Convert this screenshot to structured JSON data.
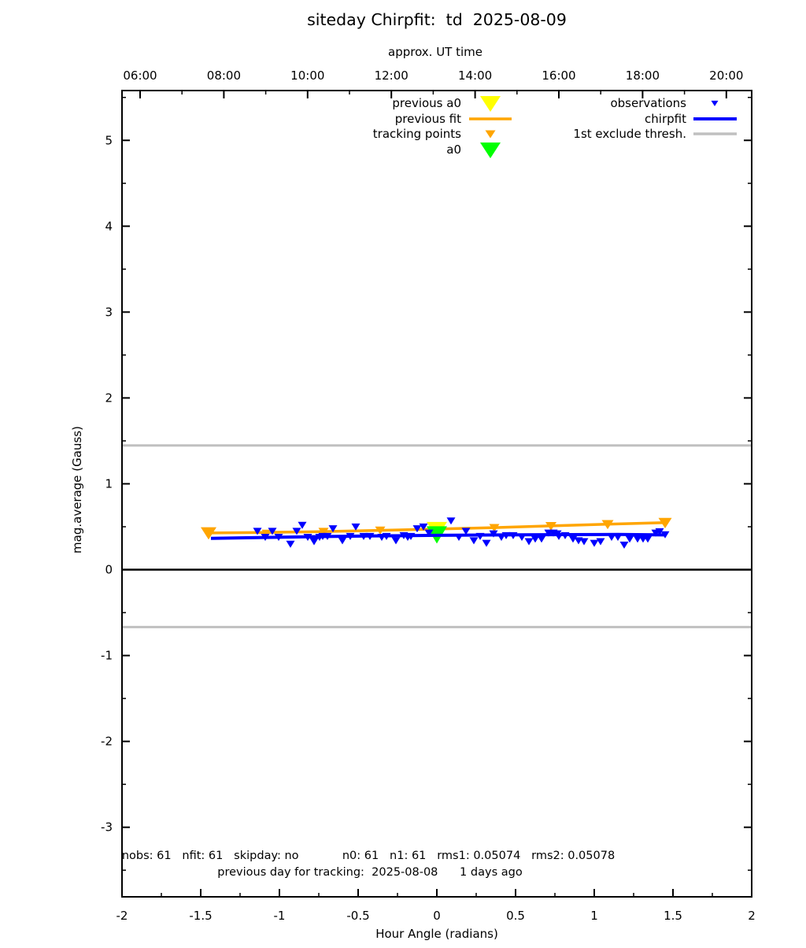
{
  "chart_data": {
    "type": "scatter",
    "title": "siteday Chirpfit:  td  2025-08-09",
    "x2label": "approx. UT time",
    "xlabel": "Hour Angle (radians)",
    "ylabel": "mag.average (Gauss)",
    "xlim": [
      -2,
      2
    ],
    "ylim": [
      -3.81,
      5.58
    ],
    "grid": false,
    "xticks": {
      "values": [
        -2,
        -1.5,
        -1,
        -0.5,
        0,
        0.5,
        1,
        1.5,
        2
      ],
      "labels": [
        "-2",
        "-1.5",
        "-1",
        "-0.5",
        "0",
        "0.5",
        "1",
        "1.5",
        "2"
      ],
      "minor_step": 0.25
    },
    "yticks": {
      "values": [
        5,
        4,
        3,
        2,
        1,
        0,
        -1,
        -2,
        -3
      ],
      "labels": [
        "5",
        "4",
        "3",
        "2",
        "1",
        "0",
        "-1",
        "-2",
        "-3"
      ],
      "minor_step": 0.5
    },
    "x2ticks": {
      "values": [
        -1.885,
        -1.353,
        -0.821,
        -0.289,
        0.243,
        0.775,
        1.307,
        1.839
      ],
      "labels": [
        "06:00",
        "08:00",
        "10:00",
        "12:00",
        "14:00",
        "16:00",
        "18:00",
        "20:00"
      ],
      "minor_step": 0.266
    },
    "colors": {
      "observations": "#0000ff",
      "chirpfit": "#0000ff",
      "previous_fit": "#ffa500",
      "tracking_points": "#ffa500",
      "previous_a0": "#ffff00",
      "a0": "#00ff00",
      "exclude_threshold": "#c0c0c0",
      "zero_line": "#000000",
      "axis": "#000000"
    },
    "legend": {
      "position": "top-inside",
      "left_column": [
        {
          "label": "previous a0",
          "marker": "triangle-large",
          "color": "#ffff00"
        },
        {
          "label": "previous fit",
          "marker": "line",
          "color": "#ffa500"
        },
        {
          "label": "tracking points",
          "marker": "triangle-small",
          "color": "#ffa500"
        },
        {
          "label": "a0",
          "marker": "triangle-large",
          "color": "#00ff00"
        }
      ],
      "right_column": [
        {
          "label": "observations",
          "marker": "triangle-tiny",
          "color": "#0000ff"
        },
        {
          "label": "chirpfit",
          "marker": "line",
          "color": "#0000ff"
        },
        {
          "label": "1st exclude thresh.",
          "marker": "line",
          "color": "#c0c0c0"
        }
      ]
    },
    "series": {
      "observations": {
        "points": [
          [
            -1.14,
            0.45
          ],
          [
            -1.09,
            0.38
          ],
          [
            -1.045,
            0.45
          ],
          [
            -1.005,
            0.38
          ],
          [
            -0.93,
            0.3
          ],
          [
            -0.89,
            0.45
          ],
          [
            -0.855,
            0.52
          ],
          [
            -0.82,
            0.38
          ],
          [
            -0.78,
            0.33
          ],
          [
            -0.745,
            0.38
          ],
          [
            -0.725,
            0.39
          ],
          [
            -0.695,
            0.39
          ],
          [
            -0.66,
            0.48
          ],
          [
            -0.6,
            0.34
          ],
          [
            -0.55,
            0.39
          ],
          [
            -0.515,
            0.5
          ],
          [
            -0.465,
            0.39
          ],
          [
            -0.425,
            0.39
          ],
          [
            -0.35,
            0.38
          ],
          [
            -0.32,
            0.39
          ],
          [
            -0.26,
            0.34
          ],
          [
            -0.21,
            0.4
          ],
          [
            -0.185,
            0.38
          ],
          [
            -0.165,
            0.39
          ],
          [
            -0.125,
            0.48
          ],
          [
            -0.085,
            0.5
          ],
          [
            -0.05,
            0.43
          ],
          [
            0.09,
            0.57
          ],
          [
            0.14,
            0.38
          ],
          [
            0.185,
            0.45
          ],
          [
            0.235,
            0.34
          ],
          [
            0.275,
            0.39
          ],
          [
            0.315,
            0.31
          ],
          [
            0.36,
            0.42
          ],
          [
            0.41,
            0.38
          ],
          [
            0.44,
            0.4
          ],
          [
            0.485,
            0.4
          ],
          [
            0.54,
            0.38
          ],
          [
            0.585,
            0.33
          ],
          [
            0.625,
            0.36
          ],
          [
            0.665,
            0.36
          ],
          [
            0.71,
            0.43
          ],
          [
            0.74,
            0.43
          ],
          [
            0.765,
            0.42
          ],
          [
            0.775,
            0.39
          ],
          [
            0.815,
            0.4
          ],
          [
            0.865,
            0.36
          ],
          [
            0.9,
            0.34
          ],
          [
            0.935,
            0.33
          ],
          [
            1.0,
            0.31
          ],
          [
            1.04,
            0.33
          ],
          [
            1.11,
            0.38
          ],
          [
            1.15,
            0.38
          ],
          [
            1.19,
            0.29
          ],
          [
            1.225,
            0.36
          ],
          [
            1.275,
            0.36
          ],
          [
            1.31,
            0.36
          ],
          [
            1.34,
            0.36
          ],
          [
            1.39,
            0.43
          ],
          [
            1.415,
            0.445
          ],
          [
            1.45,
            0.41
          ]
        ]
      },
      "chirpfit_line": {
        "points": [
          [
            -1.435,
            0.365
          ],
          [
            -1.1,
            0.375
          ],
          [
            -0.75,
            0.385
          ],
          [
            -0.4,
            0.393
          ],
          [
            0.0,
            0.4
          ],
          [
            0.4,
            0.405
          ],
          [
            0.8,
            0.408
          ],
          [
            1.15,
            0.41
          ],
          [
            1.45,
            0.405
          ]
        ]
      },
      "previous_fit_line": {
        "points": [
          [
            -1.45,
            0.428
          ],
          [
            -1.1,
            0.433
          ],
          [
            -0.75,
            0.443
          ],
          [
            -0.4,
            0.456
          ],
          [
            0.0,
            0.473
          ],
          [
            0.365,
            0.49
          ],
          [
            0.725,
            0.51
          ],
          [
            1.085,
            0.53
          ],
          [
            1.45,
            0.548
          ]
        ]
      },
      "tracking_points": {
        "points": [
          [
            -1.45,
            0.43,
            20
          ],
          [
            -1.085,
            0.43,
            11
          ],
          [
            -0.72,
            0.445,
            13
          ],
          [
            -0.36,
            0.46,
            13
          ],
          [
            0.0,
            0.473,
            13
          ],
          [
            0.365,
            0.49,
            13
          ],
          [
            0.725,
            0.51,
            14
          ],
          [
            1.085,
            0.53,
            15
          ],
          [
            1.45,
            0.548,
            17
          ]
        ]
      },
      "previous_a0": {
        "point": [
          0.0,
          0.473
        ]
      },
      "a0": {
        "point": [
          0.0,
          0.415
        ]
      },
      "exclude_thresholds": [
        1.447,
        -0.668
      ],
      "zero_line": 0
    },
    "annotations": {
      "stats_line1": "nobs: 61   nfit: 61   skipday: no            n0: 61   n1: 61   rms1: 0.05074   rms2: 0.05078",
      "stats_line2": "previous day for tracking:  2025-08-08      1 days ago"
    },
    "stats": {
      "nobs": 61,
      "nfit": 61,
      "skipday": "no",
      "n0": 61,
      "n1": 61,
      "rms1": 0.05074,
      "rms2": 0.05078,
      "previous_day_for_tracking": "2025-08-08",
      "days_ago": 1
    }
  }
}
